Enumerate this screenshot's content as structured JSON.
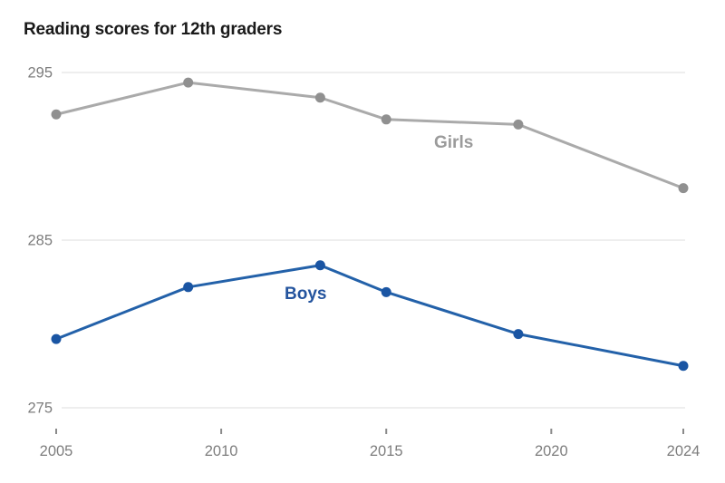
{
  "page": {
    "title": "Reading scores for 12th graders"
  },
  "chart_data": {
    "type": "line",
    "title": "Reading scores for 12th graders",
    "xlabel": "",
    "ylabel": "",
    "x": [
      2005,
      2009,
      2013,
      2015,
      2019,
      2024
    ],
    "series": [
      {
        "name": "Girls",
        "label": "Girls",
        "color": "#aaaaaa",
        "marker_color": "#909090",
        "label_color": "#9b9b9b",
        "values": [
          292.5,
          294.4,
          293.5,
          292.2,
          291.9,
          288.1
        ]
      },
      {
        "name": "Boys",
        "label": "Boys",
        "color": "#2361a9",
        "marker_color": "#1a55a3",
        "label_color": "#24549e",
        "values": [
          279.1,
          282.2,
          283.5,
          281.9,
          279.4,
          277.5
        ]
      }
    ],
    "xlim": [
      2005,
      2024
    ],
    "ylim": [
      274,
      296
    ],
    "yticks": [
      275,
      285,
      295
    ],
    "xticks": [
      2005,
      2010,
      2015,
      2020,
      2024
    ],
    "grid": "horizontal",
    "legend": "inline-labels",
    "colors": {
      "background": "#ffffff",
      "grid_line": "#e4e4e4",
      "axis_text": "#7d7d7d",
      "tick_mark": "#8a8a8a",
      "title_text": "#1a1a1a"
    }
  }
}
